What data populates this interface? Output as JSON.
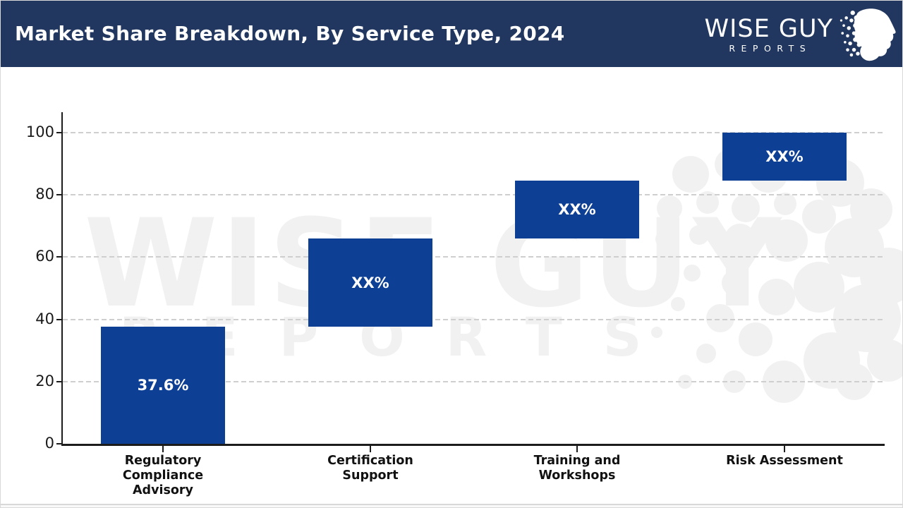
{
  "header": {
    "title": "Market Share Breakdown, By Service Type, 2024",
    "logo_line1": "WISE GUY",
    "logo_line2": "REPORTS"
  },
  "watermark": {
    "line1": "WISE GUY",
    "line2": "REPORTS"
  },
  "chart_data": {
    "type": "bar",
    "subtype": "waterfall",
    "title": "Market Share Breakdown, By Service Type, 2024",
    "categories": [
      "Regulatory\nCompliance\nAdvisory",
      "Certification\nSupport",
      "Training and\nWorkshops",
      "Risk Assessment"
    ],
    "segments": [
      {
        "category": "Regulatory Compliance Advisory",
        "start": 0,
        "end": 37.6,
        "label": "37.6%"
      },
      {
        "category": "Certification Support",
        "start": 37.6,
        "end": 66,
        "label": "XX%"
      },
      {
        "category": "Training and Workshops",
        "start": 66,
        "end": 84.5,
        "label": "XX%"
      },
      {
        "category": "Risk Assessment",
        "start": 84.5,
        "end": 100,
        "label": "XX%"
      }
    ],
    "yticks": [
      0,
      20,
      40,
      60,
      80,
      100
    ],
    "ylim": [
      0,
      106
    ],
    "xlabel": "",
    "ylabel": "",
    "legend": "none",
    "grid": "horizontal-dashed",
    "colors": {
      "bar": "#0d3f94",
      "header_bg": "#21375f",
      "grid": "#cfcfcf",
      "axis": "#1c1c1c",
      "bar_label_text": "#ffffff",
      "watermark": "#f1f1f1"
    }
  }
}
